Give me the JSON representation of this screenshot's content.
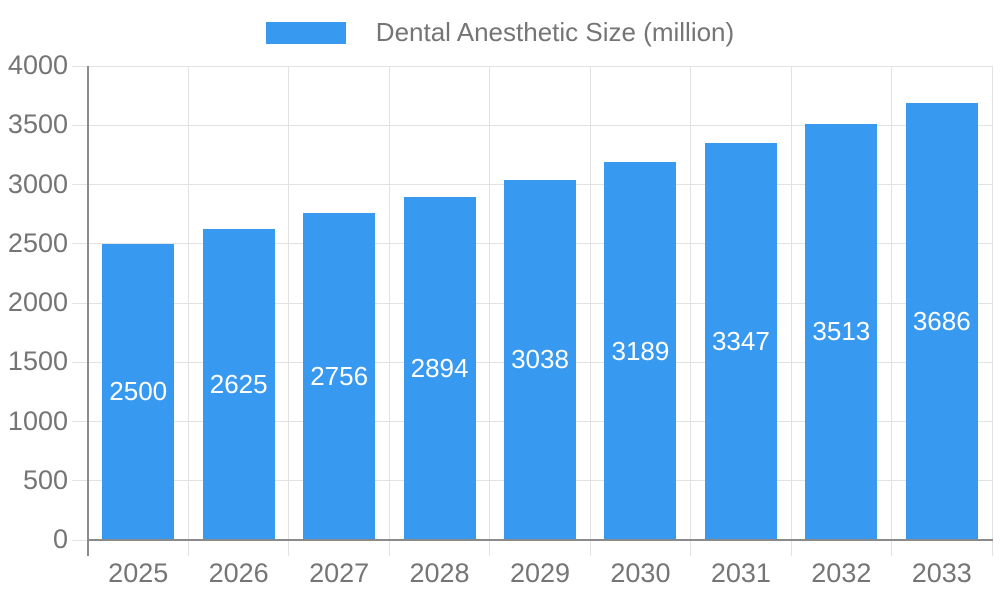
{
  "chart_data": {
    "type": "bar",
    "title": "",
    "legend": {
      "label": "Dental Anesthetic Size (million)",
      "position": "top"
    },
    "categories": [
      "2025",
      "2026",
      "2027",
      "2028",
      "2029",
      "2030",
      "2031",
      "2032",
      "2033"
    ],
    "series": [
      {
        "name": "Dental Anesthetic Size (million)",
        "values": [
          2500,
          2625,
          2756,
          2894,
          3038,
          3189,
          3347,
          3513,
          3686
        ]
      }
    ],
    "xlabel": "",
    "ylabel": "",
    "ylim": [
      0,
      4000
    ],
    "ytick_step": 500,
    "ytick_labels": [
      "0",
      "500",
      "1000",
      "1500",
      "2000",
      "2500",
      "3000",
      "3500",
      "4000"
    ],
    "grid": true,
    "bar_value_labels": "inside-center",
    "colors": {
      "bar": "#3899F0",
      "axis_text": "#757575",
      "grid_line": "#E2E2E2",
      "axis_line": "#8A8A8A",
      "bar_label_text": "#FFFFFF",
      "background": "#FFFFFF"
    }
  }
}
